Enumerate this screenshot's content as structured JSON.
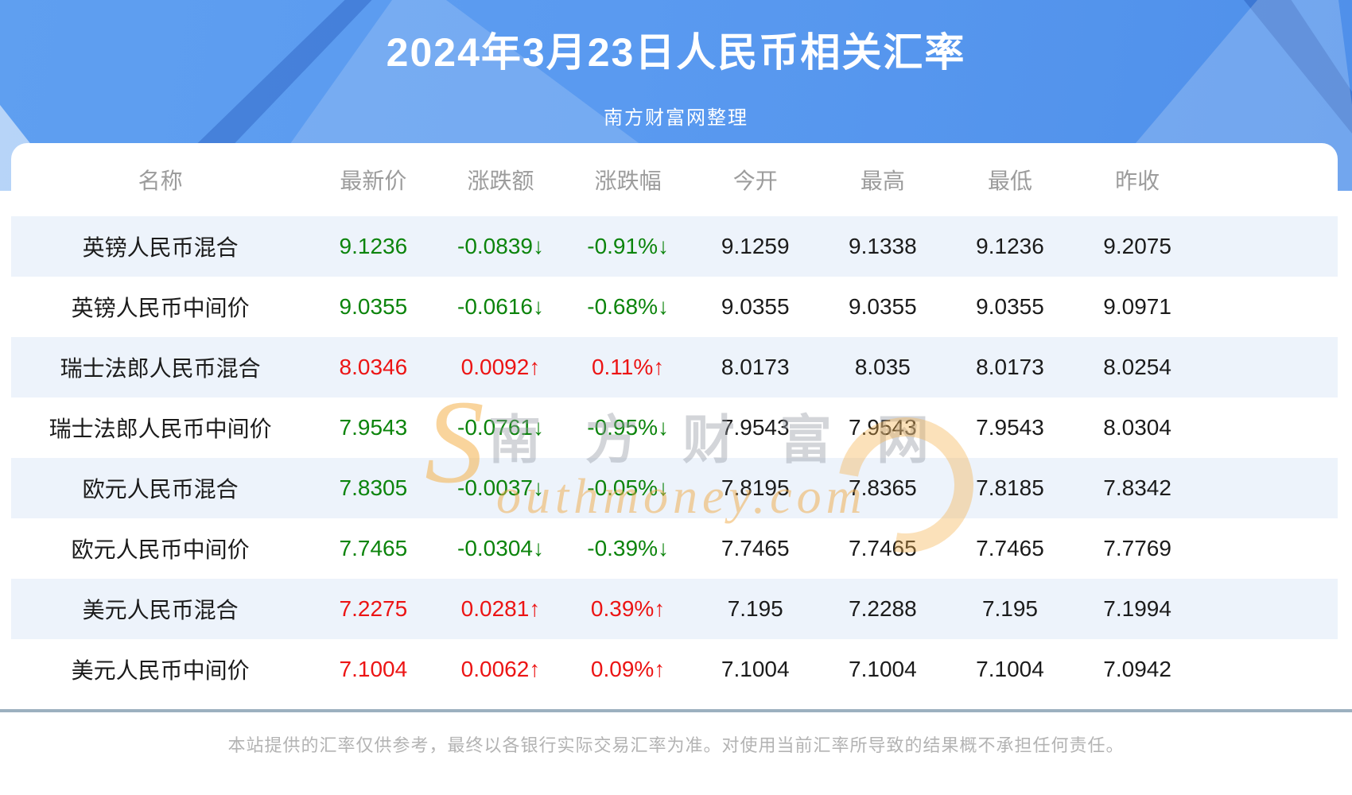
{
  "hero": {
    "title": "2024年3月23日人民币相关汇率",
    "subtitle": "南方财富网整理"
  },
  "table": {
    "headers": [
      "名称",
      "最新价",
      "涨跌额",
      "涨跌幅",
      "今开",
      "最高",
      "最低",
      "昨收"
    ],
    "rows": [
      {
        "name": "英镑人民币混合",
        "latest": "9.1236",
        "change": "-0.0839↓",
        "pct": "-0.91%↓",
        "open": "9.1259",
        "high": "9.1338",
        "low": "9.1236",
        "prev": "9.2075",
        "direction": "down"
      },
      {
        "name": "英镑人民币中间价",
        "latest": "9.0355",
        "change": "-0.0616↓",
        "pct": "-0.68%↓",
        "open": "9.0355",
        "high": "9.0355",
        "low": "9.0355",
        "prev": "9.0971",
        "direction": "down"
      },
      {
        "name": "瑞士法郎人民币混合",
        "latest": "8.0346",
        "change": "0.0092↑",
        "pct": "0.11%↑",
        "open": "8.0173",
        "high": "8.035",
        "low": "8.0173",
        "prev": "8.0254",
        "direction": "up"
      },
      {
        "name": "瑞士法郎人民币中间价",
        "latest": "7.9543",
        "change": "-0.0761↓",
        "pct": "-0.95%↓",
        "open": "7.9543",
        "high": "7.9543",
        "low": "7.9543",
        "prev": "8.0304",
        "direction": "down"
      },
      {
        "name": "欧元人民币混合",
        "latest": "7.8305",
        "change": "-0.0037↓",
        "pct": "-0.05%↓",
        "open": "7.8195",
        "high": "7.8365",
        "low": "7.8185",
        "prev": "7.8342",
        "direction": "down"
      },
      {
        "name": "欧元人民币中间价",
        "latest": "7.7465",
        "change": "-0.0304↓",
        "pct": "-0.39%↓",
        "open": "7.7465",
        "high": "7.7465",
        "low": "7.7465",
        "prev": "7.7769",
        "direction": "down"
      },
      {
        "name": "美元人民币混合",
        "latest": "7.2275",
        "change": "0.0281↑",
        "pct": "0.39%↑",
        "open": "7.195",
        "high": "7.2288",
        "low": "7.195",
        "prev": "7.1994",
        "direction": "up"
      },
      {
        "name": "美元人民币中间价",
        "latest": "7.1004",
        "change": "0.0062↑",
        "pct": "0.09%↑",
        "open": "7.1004",
        "high": "7.1004",
        "low": "7.1004",
        "prev": "7.0942",
        "direction": "up"
      }
    ]
  },
  "watermark": {
    "cn": "南方财富网",
    "s": "S",
    "en": "outhmoney.com"
  },
  "footer": {
    "disclaimer": "本站提供的汇率仅供参考，最终以各银行实际交易汇率为准。对使用当前汇率所导致的结果概不承担任何责任。"
  },
  "colors": {
    "hero_blue": "#5a9af0",
    "up_red": "#ec1414",
    "down_green": "#0c840c",
    "row_stripe": "#edf3fb",
    "divider": "#9cb0bf"
  }
}
